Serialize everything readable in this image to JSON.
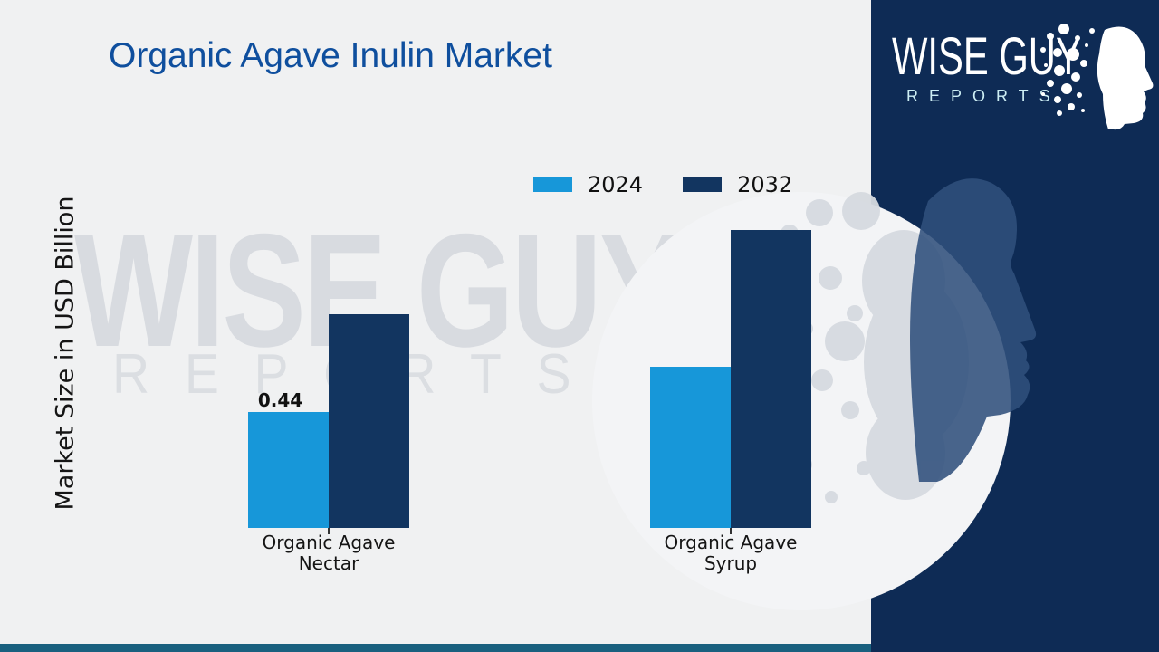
{
  "page": {
    "background": "#f0f1f2",
    "accent_strip_color": "#19607f"
  },
  "header": {
    "title": "Organic Agave Inulin Market",
    "title_color": "#0f4f9e"
  },
  "y_axis": {
    "label": "Market Size in USD Billion"
  },
  "logo": {
    "brand_line1": "WISE GUY",
    "brand_line2": "REPORTS",
    "panel_color": "#0e2b55"
  },
  "watermark": {
    "line1": "WISE GUY",
    "line2": "REPORTS"
  },
  "chart_data": {
    "type": "bar",
    "title": "Organic Agave Inulin Market",
    "xlabel": "",
    "ylabel": "Market Size in USD Billion",
    "categories": [
      "Organic Agave Nectar",
      "Organic Agave Syrup"
    ],
    "series": [
      {
        "name": "2024",
        "color": "#1797d9",
        "values": [
          0.44,
          0.61
        ],
        "labels": [
          "0.44",
          ""
        ]
      },
      {
        "name": "2032",
        "color": "#123560",
        "values": [
          0.81,
          1.13
        ],
        "labels": [
          "",
          ""
        ]
      }
    ],
    "ylim": [
      0,
      1.25
    ],
    "grid": false,
    "legend_position": "top-center",
    "notes": "only the 2024 Organic Agave Nectar bar shows a printed value label"
  }
}
